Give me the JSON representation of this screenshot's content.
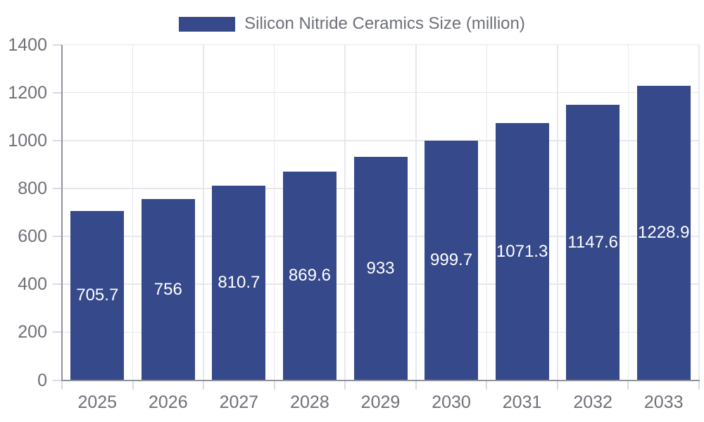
{
  "legend": {
    "label": "Silicon Nitride Ceramics Size (million)"
  },
  "chart_data": {
    "type": "bar",
    "title": "Silicon Nitride Ceramics Size (million)",
    "categories": [
      "2025",
      "2026",
      "2027",
      "2028",
      "2029",
      "2030",
      "2031",
      "2032",
      "2033"
    ],
    "series": [
      {
        "name": "Silicon Nitride Ceramics Size (million)",
        "values": [
          705.7,
          756,
          810.7,
          869.6,
          933,
          999.7,
          1071.3,
          1147.6,
          1228.9
        ]
      }
    ],
    "value_labels": [
      "705.7",
      "756",
      "810.7",
      "869.6",
      "933",
      "999.7",
      "1071.3",
      "1147.6",
      "1228.9"
    ],
    "xlabel": "",
    "ylabel": "",
    "ylim": [
      0,
      1400
    ],
    "yticks": [
      0,
      200,
      400,
      600,
      800,
      1000,
      1200,
      1400
    ],
    "grid": true,
    "legend_position": "top-center",
    "value_label_position": "inside-center"
  },
  "colors": {
    "bar": "#36498B",
    "value_label": "#FFFFFF",
    "axis_text": "#6E7079",
    "axis_line": "#8F929A",
    "grid_line": "#E6E8ED",
    "tick_mark": "#D7DAE1",
    "background": "#FFFFFF"
  }
}
